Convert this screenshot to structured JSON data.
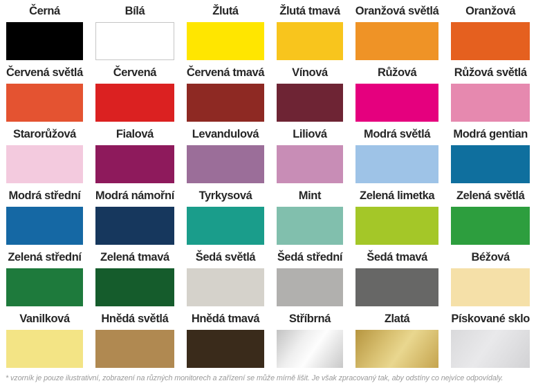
{
  "page": {
    "background": "#FFFFFF",
    "label_color": "#262626",
    "footnote_color": "#9A9A9A",
    "footnote": "* vzorník je pouze ilustrativní, zobrazení na různých monitorech a zařízení se může mírně lišit. Je však zpracovaný tak, aby odstíny co nejvíce odpovídaly."
  },
  "chart_data": {
    "type": "table",
    "title": "",
    "layout": {
      "columns": 6,
      "rows": 6
    },
    "swatches": [
      {
        "name": "Černá",
        "background": "#000000"
      },
      {
        "name": "Bílá",
        "background": "#FFFFFF",
        "border": "#C5C5C5"
      },
      {
        "name": "Žlutá",
        "background": "#FFE600"
      },
      {
        "name": "Žlutá tmavá",
        "background": "#F8C51D"
      },
      {
        "name": "Oranžová světlá",
        "background": "#EF9326"
      },
      {
        "name": "Oranžová",
        "background": "#E5601F"
      },
      {
        "name": "Červená světlá",
        "background": "#E45331"
      },
      {
        "name": "Červená",
        "background": "#DB2121"
      },
      {
        "name": "Červená tmavá",
        "background": "#8E2923"
      },
      {
        "name": "Vínová",
        "background": "#6E2434"
      },
      {
        "name": "Růžová",
        "background": "#E5007E"
      },
      {
        "name": "Růžová světlá",
        "background": "#E689AF"
      },
      {
        "name": "Starorůžová",
        "background": "#F3CADE"
      },
      {
        "name": "Fialová",
        "background": "#8E1A5C"
      },
      {
        "name": "Levandulová",
        "background": "#9B6E99"
      },
      {
        "name": "Liliová",
        "background": "#C88DB6"
      },
      {
        "name": "Modrá světlá",
        "background": "#9EC3E7"
      },
      {
        "name": "Modrá gentian",
        "background": "#0F6F9E"
      },
      {
        "name": "Modrá střední",
        "background": "#1568A4"
      },
      {
        "name": "Modrá námořní",
        "background": "#16375D"
      },
      {
        "name": "Tyrkysová",
        "background": "#1A9D8B"
      },
      {
        "name": "Mint",
        "background": "#81BFAD"
      },
      {
        "name": "Zelená limetka",
        "background": "#A4C728"
      },
      {
        "name": "Zelená světlá",
        "background": "#2D9E3E"
      },
      {
        "name": "Zelená střední",
        "background": "#1E7A3C"
      },
      {
        "name": "Zelená tmavá",
        "background": "#155C2C"
      },
      {
        "name": "Šedá světlá",
        "background": "#D5D2CB"
      },
      {
        "name": "Šedá střední",
        "background": "#B1B0AE"
      },
      {
        "name": "Šedá tmavá",
        "background": "#676766"
      },
      {
        "name": "Béžová",
        "background": "#F5E0A8"
      },
      {
        "name": "Vanilková",
        "background": "#F3E485"
      },
      {
        "name": "Hnědá světlá",
        "background": "#B08951"
      },
      {
        "name": "Hnědá tmavá",
        "background": "#3A2B1B"
      },
      {
        "name": "Stříbrná",
        "background": "linear-gradient(125deg, #C2C2C2 0%, #EFEFEF 35%, #FDFDFD 55%, #C8C8C8 100%)"
      },
      {
        "name": "Zlatá",
        "background": "linear-gradient(125deg, #B6953F 0%, #D9C172 35%, #E9D78F 55%, #C5A44E 100%)"
      },
      {
        "name": "Pískované sklo",
        "background": "linear-gradient(125deg, #D9D9DB 0%, #E9E9EB 45%, #DFDFE1 70%, #D2D2D4 100%)"
      }
    ]
  }
}
